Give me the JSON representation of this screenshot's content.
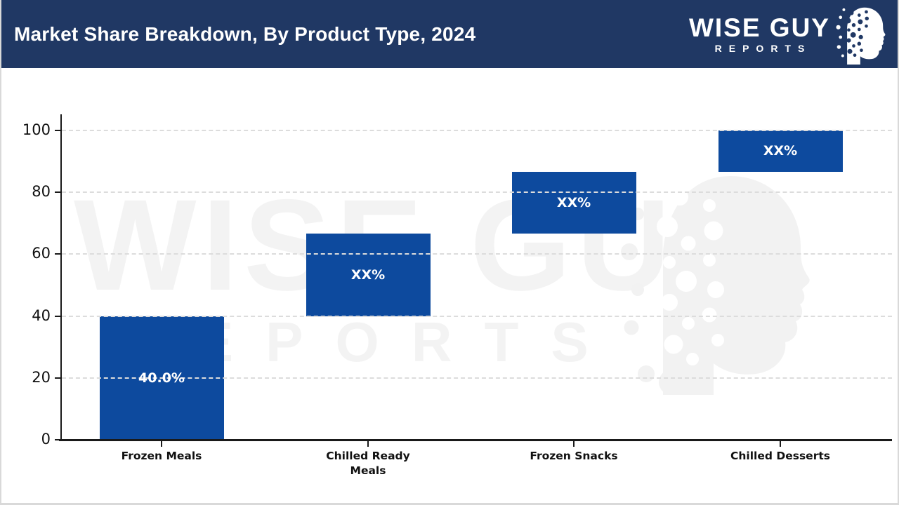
{
  "header": {
    "title": "Market Share Breakdown, By Product Type, 2024",
    "logo": {
      "brand_top": "WISE GUY",
      "brand_bottom": "REPORTS"
    }
  },
  "watermark": {
    "line1": "WISE GUY.",
    "line2": "REPORTS"
  },
  "colors": {
    "header_bg": "#203864",
    "bar": "#0d4a9e",
    "bar_label": "#ffffff",
    "axis": "#1a1a1a",
    "grid": "#dcdcdc",
    "watermark": "#f3f3f3"
  },
  "chart_data": {
    "type": "bar",
    "subtype": "waterfall",
    "title": "Market Share Breakdown, By Product Type, 2024",
    "categories": [
      "Frozen Meals",
      "Chilled Ready Meals",
      "Frozen Snacks",
      "Chilled Desserts"
    ],
    "bars": [
      {
        "category": "Frozen Meals",
        "start": 0,
        "end": 40,
        "label": "40.0%"
      },
      {
        "category": "Chilled Ready Meals",
        "start": 40,
        "end": 66.7,
        "label": "XX%"
      },
      {
        "category": "Frozen Snacks",
        "start": 66.7,
        "end": 86.6,
        "label": "XX%"
      },
      {
        "category": "Chilled Desserts",
        "start": 86.6,
        "end": 100,
        "label": "XX%"
      }
    ],
    "xlabel": "",
    "ylabel": "",
    "ylim": [
      0,
      100
    ],
    "yticks": [
      0,
      20,
      40,
      60,
      80,
      100
    ],
    "grid": "horizontal-dashed-above-bars",
    "legend": "none"
  }
}
